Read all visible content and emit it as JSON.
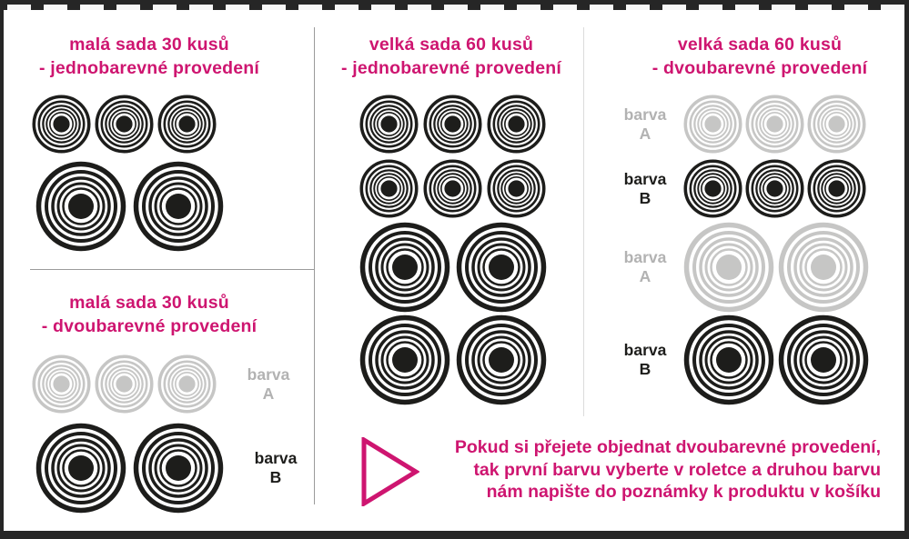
{
  "colors": {
    "accent_pink": "#ce1570",
    "circle_black": "#1d1d1b",
    "circle_gray": "#c6c6c5",
    "label_gray": "#b2b2b2",
    "label_black": "#1d1d1b",
    "divider_strong": "#9b9b9b",
    "divider_light": "#dcdcdc",
    "frame_black": "#262626"
  },
  "sections": {
    "small_single": {
      "title_line1": "malá sada 30 kusů",
      "title_line2": "- jednobarevné provedení",
      "rows": [
        {
          "size": "small",
          "color": "black",
          "count": 3
        },
        {
          "size": "large",
          "color": "black",
          "count": 2
        }
      ]
    },
    "small_two": {
      "title_line1": "malá sada 30 kusů",
      "title_line2": "- dvoubarevné provedení",
      "rows": [
        {
          "size": "small",
          "color": "gray",
          "count": 3,
          "label": "A"
        },
        {
          "size": "large",
          "color": "black",
          "count": 2,
          "label": "B"
        }
      ]
    },
    "large_single": {
      "title_line1": "velká sada 60 kusů",
      "title_line2": "- jednobarevné provedení",
      "rows": [
        {
          "size": "small",
          "color": "black",
          "count": 3
        },
        {
          "size": "small",
          "color": "black",
          "count": 3
        },
        {
          "size": "large",
          "color": "black",
          "count": 2
        },
        {
          "size": "large",
          "color": "black",
          "count": 2
        }
      ]
    },
    "large_two": {
      "title_line1": "velká sada 60 kusů",
      "title_line2": "- dvoubarevné provedení",
      "rows": [
        {
          "size": "small",
          "color": "gray",
          "count": 3,
          "label": "A"
        },
        {
          "size": "small",
          "color": "black",
          "count": 3,
          "label": "B"
        },
        {
          "size": "large",
          "color": "gray",
          "count": 2,
          "label": "A"
        },
        {
          "size": "large",
          "color": "black",
          "count": 2,
          "label": "B"
        }
      ]
    }
  },
  "labels": {
    "barva": "barva",
    "A": "A",
    "B": "B"
  },
  "note": {
    "line1": "Pokud si přejete objednat dvoubarevné provedení,",
    "line2": "tak první barvu vyberte v roletce a druhou barvu",
    "line3": "nám napište do poznámky k produktu v košíku"
  },
  "icons": {
    "play_triangle": "▷"
  }
}
